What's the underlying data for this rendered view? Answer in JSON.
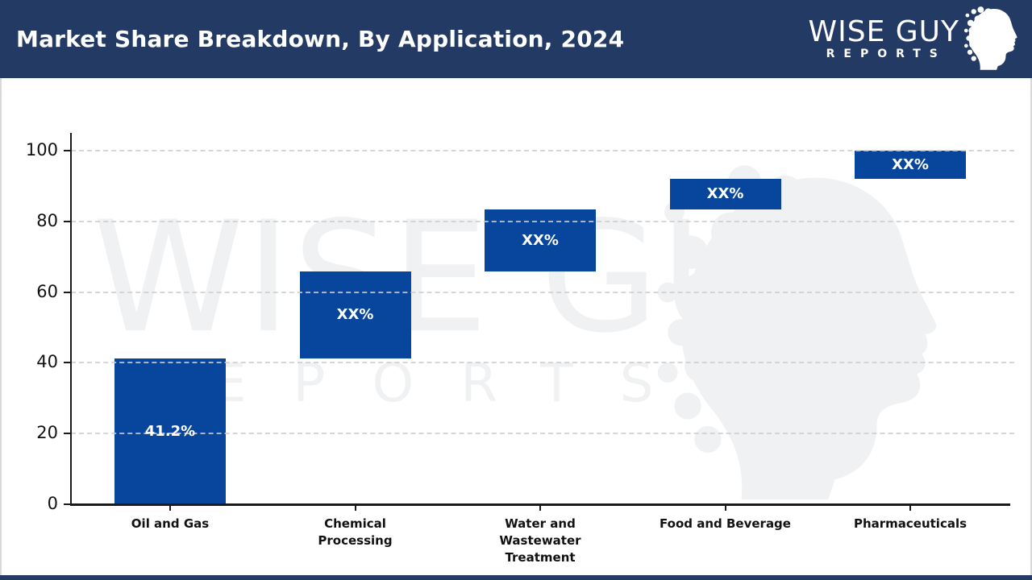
{
  "header": {
    "title": "Market Share Breakdown, By Application, 2024",
    "logo": {
      "line1": "WISE GUY",
      "line2": "REPORTS"
    }
  },
  "watermark": {
    "line1": "WISE GUY",
    "line2": "REPORTS"
  },
  "chart_data": {
    "type": "bar",
    "subtype": "waterfall",
    "title": "Market Share Breakdown, By Application, 2024",
    "categories": [
      "Oil and Gas",
      "Chemical Processing",
      "Water and Wastewater Treatment",
      "Food and Beverage",
      "Pharmaceuticals"
    ],
    "category_label_lines": [
      [
        "Oil and Gas"
      ],
      [
        "Chemical",
        "Processing"
      ],
      [
        "Water and",
        "Wastewater",
        "Treatment"
      ],
      [
        "Food and Beverage"
      ],
      [
        "Pharmaceuticals"
      ]
    ],
    "segments": [
      {
        "category": "Oil and Gas",
        "start": 0,
        "end": 41.2,
        "label": "41.2%"
      },
      {
        "category": "Chemical Processing",
        "start": 41.2,
        "end": 65.8,
        "label": "XX%"
      },
      {
        "category": "Water and Wastewater Treatment",
        "start": 65.8,
        "end": 83.4,
        "label": "XX%"
      },
      {
        "category": "Food and Beverage",
        "start": 83.4,
        "end": 92.0,
        "label": "XX%"
      },
      {
        "category": "Pharmaceuticals",
        "start": 92.0,
        "end": 100.0,
        "label": "XX%"
      }
    ],
    "yticks": [
      0,
      20,
      40,
      60,
      80,
      100
    ],
    "ylim": [
      0,
      105
    ],
    "xlabel": "",
    "ylabel": "",
    "grid": "horizontal-dashed",
    "legend": "none"
  },
  "colors": {
    "header_bg": "#233A64",
    "bar": "#08459C",
    "axis": "#1a1a1a",
    "tick_text": "#111111",
    "watermark": "#f0f1f3",
    "bottom_strip": "#233A64"
  }
}
